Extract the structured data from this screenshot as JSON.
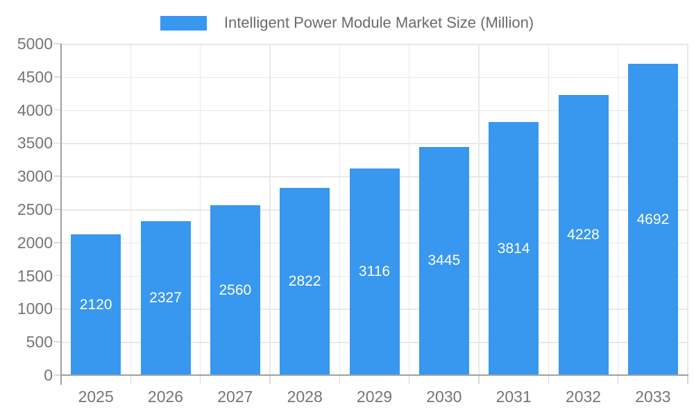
{
  "chart_data": {
    "type": "bar",
    "title": "",
    "legend": [
      "Intelligent Power Module Market Size (Million)"
    ],
    "legend_position": "top-center",
    "categories": [
      "2025",
      "2026",
      "2027",
      "2028",
      "2029",
      "2030",
      "2031",
      "2032",
      "2033"
    ],
    "values": [
      2120,
      2327,
      2560,
      2822,
      3116,
      3445,
      3814,
      4228,
      4692
    ],
    "xlabel": "",
    "ylabel": "",
    "ylim": [
      0,
      5000
    ],
    "ytick_step": 500,
    "yticks": [
      0,
      500,
      1000,
      1500,
      2000,
      2500,
      3000,
      3500,
      4000,
      4500,
      5000
    ],
    "grid": true,
    "bar_label_position": "inside-middle"
  },
  "style": {
    "bar_color": "#3897EE",
    "bar_label_color": "#FFFFFF",
    "grid_color": "#E8E8E8",
    "tick_color": "#D8D8D8",
    "axis_line_color": "#9E9E9E",
    "axis_text_color": "#757575",
    "legend_text_color": "#6B6B6B",
    "background_color": "#FFFFFF"
  }
}
